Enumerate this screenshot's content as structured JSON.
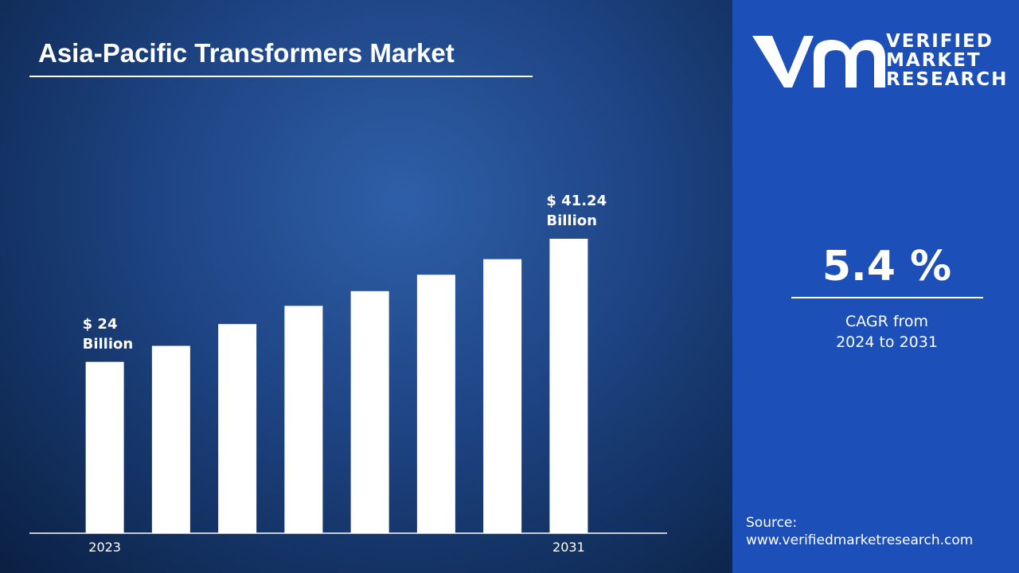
{
  "chart_data": {
    "type": "bar",
    "title": "Asia-Pacific Transformers Market",
    "categories": [
      "2023",
      null,
      null,
      null,
      null,
      null,
      null,
      "2031"
    ],
    "values": [
      24,
      26.24,
      29.29,
      31.84,
      33.9,
      36.2,
      38.38,
      41.24
    ],
    "value_labels": [
      "$ 24 Billion",
      null,
      null,
      null,
      null,
      null,
      null,
      "$ 41.24 Billion"
    ],
    "color": "#ffffff"
  },
  "cagr": "5.4 %",
  "cagr_label": "CAGR from 2024 to 2031",
  "brand": [
    "VERIFIED",
    "MARKET",
    "RESEARCH"
  ],
  "source_label": "Source:",
  "source_url": "www.verifiedmarketresearch.com"
}
